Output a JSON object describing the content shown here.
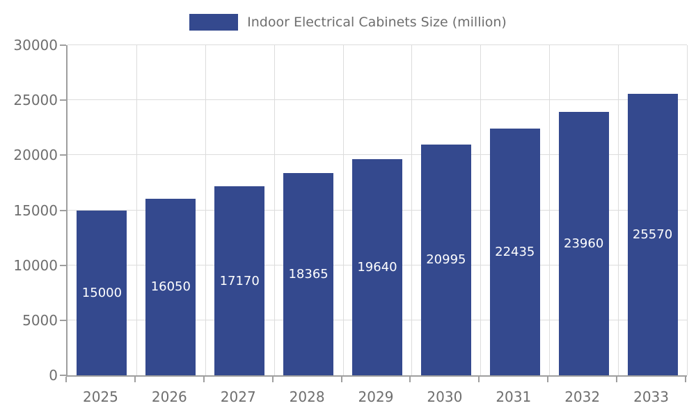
{
  "chart_data": {
    "type": "bar",
    "series_name": "Indoor Electrical Cabinets Size (million)",
    "categories": [
      "2025",
      "2026",
      "2027",
      "2028",
      "2029",
      "2030",
      "2031",
      "2032",
      "2033"
    ],
    "values": [
      15000,
      16050,
      17170,
      18365,
      19640,
      20995,
      22435,
      23960,
      25570
    ],
    "title": "",
    "xlabel": "",
    "ylabel": "",
    "ylim": [
      0,
      30000
    ],
    "yticks": [
      0,
      5000,
      10000,
      15000,
      20000,
      25000,
      30000
    ],
    "grid": true,
    "legend_position": "top",
    "bar_value_labels_inside": true,
    "colors": {
      "bar": "#34498E",
      "bar_label": "#FFFFFF",
      "axis_text": "#6E6E6E",
      "grid": "#DCDCDC",
      "axis_line": "#9E9E9E",
      "background": "#FFFFFF"
    }
  }
}
